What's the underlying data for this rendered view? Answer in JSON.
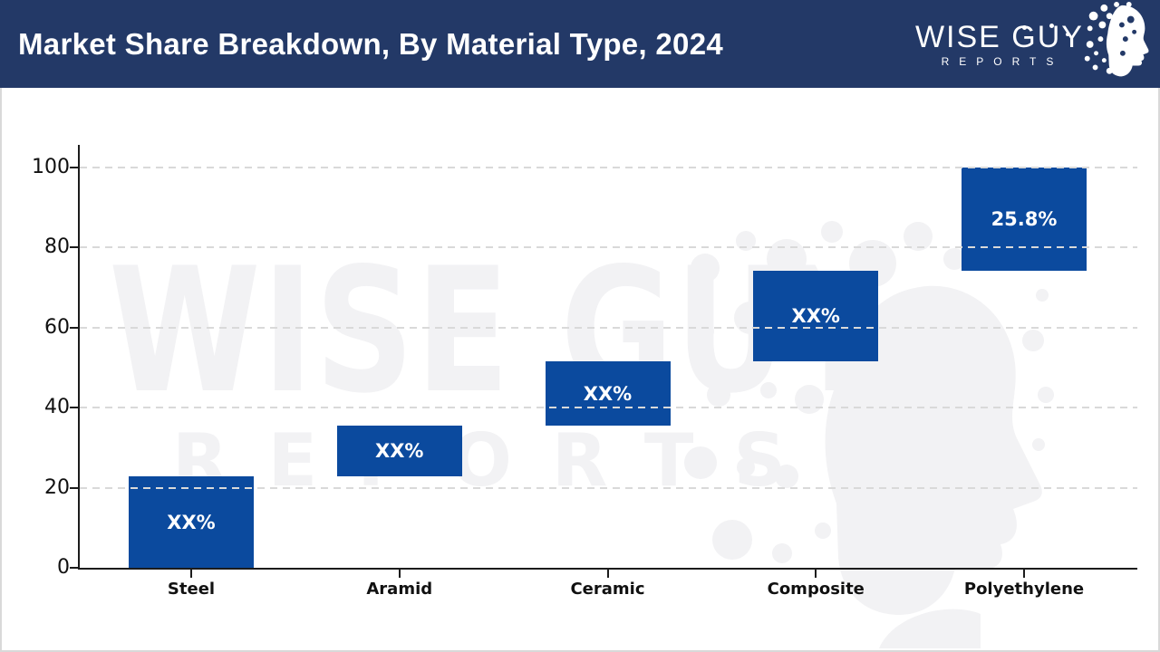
{
  "header": {
    "title": "Market Share Breakdown, By Material Type, 2024",
    "background_color": "#233967",
    "logo": {
      "primary": "WISE GUY",
      "secondary": "REPORTS"
    }
  },
  "watermark": {
    "primary": "WISE GUY",
    "secondary": "REPORTS"
  },
  "chart_data": {
    "type": "bar",
    "subtype": "waterfall",
    "title": "Market Share Breakdown, By Material Type, 2024",
    "categories": [
      "Steel",
      "Aramid",
      "Ceramic",
      "Composite",
      "Polyethylene"
    ],
    "segments": [
      {
        "category": "Steel",
        "start": 0,
        "end": 22.8,
        "label": "XX%"
      },
      {
        "category": "Aramid",
        "start": 22.8,
        "end": 35.5,
        "label": "XX%"
      },
      {
        "category": "Ceramic",
        "start": 35.5,
        "end": 51.6,
        "label": "XX%"
      },
      {
        "category": "Composite",
        "start": 51.6,
        "end": 74.2,
        "label": "XX%"
      },
      {
        "category": "Polyethylene",
        "start": 74.2,
        "end": 100,
        "label": "25.8%"
      }
    ],
    "xlabel": "",
    "ylabel": "",
    "ylim": [
      0,
      100
    ],
    "yticks": [
      0,
      20,
      40,
      60,
      80,
      100
    ],
    "grid": {
      "horizontal": true,
      "style": "dashed",
      "color": "#d9d9d9",
      "above_bars": true
    },
    "legend": "none",
    "bar_color": "#0b4a9e",
    "bar_label_color": "#ffffff",
    "axis_color": "#1c1c1c"
  }
}
